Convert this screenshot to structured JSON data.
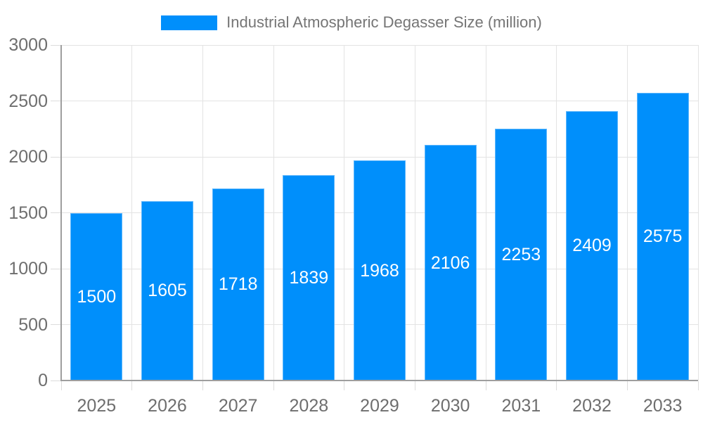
{
  "chart_data": {
    "type": "bar",
    "title": "Industrial Atmospheric Degasser Size (million)",
    "categories": [
      "2025",
      "2026",
      "2027",
      "2028",
      "2029",
      "2030",
      "2031",
      "2032",
      "2033"
    ],
    "values": [
      1500,
      1605,
      1718,
      1839,
      1968,
      2106,
      2253,
      2409,
      2575
    ],
    "xlabel": "",
    "ylabel": "",
    "ylim": [
      0,
      3000
    ],
    "yticks": [
      0,
      500,
      1000,
      1500,
      2000,
      2500,
      3000
    ],
    "grid": true,
    "legend_position": "top",
    "value_label_position": "inside-center",
    "colors": {
      "bar": "#008FFB",
      "bar_edge": "#5FB7FC",
      "value_label": "#FFFFFF",
      "axis_label": "#6E6E6E",
      "legend_text": "#757575",
      "grid": "#E3E3E3",
      "tick": "#DCDCDC",
      "axis_line": "#9E9E9E",
      "background": "#FFFFFF"
    }
  }
}
